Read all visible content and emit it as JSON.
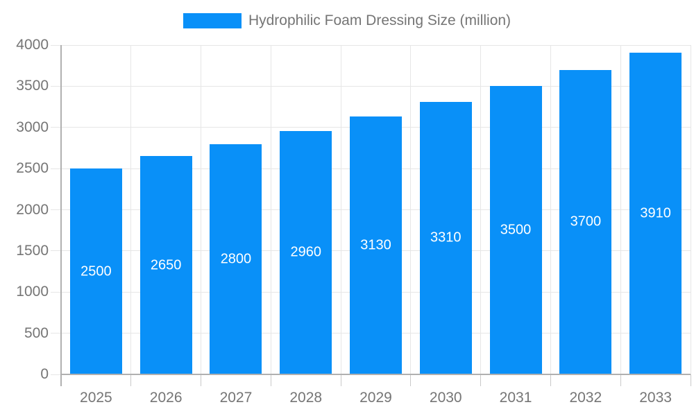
{
  "chart_data": {
    "type": "bar",
    "title": "Hydrophilic Foam Dressing Size (million)",
    "categories": [
      "2025",
      "2026",
      "2027",
      "2028",
      "2029",
      "2030",
      "2031",
      "2032",
      "2033"
    ],
    "series": [
      {
        "name": "Hydrophilic Foam Dressing Size (million)",
        "values": [
          2500,
          2650,
          2800,
          2960,
          3130,
          3310,
          3500,
          3700,
          3910
        ]
      }
    ],
    "data_labels_visible": true,
    "xlabel": "",
    "ylabel": "",
    "ylim": [
      0,
      4000
    ],
    "yticks": [
      0,
      500,
      1000,
      1500,
      2000,
      2500,
      3000,
      3500,
      4000
    ],
    "grid": true,
    "legend_position": "top-center",
    "colors": {
      "bar": "#0990f8",
      "bar_label_text": "#ffffff",
      "axis_text": "#757575",
      "grid_line": "#e6e6e6",
      "tick_line": "#c9c9c9",
      "axis_line": "#b0b0b0",
      "background": "#ffffff"
    }
  }
}
